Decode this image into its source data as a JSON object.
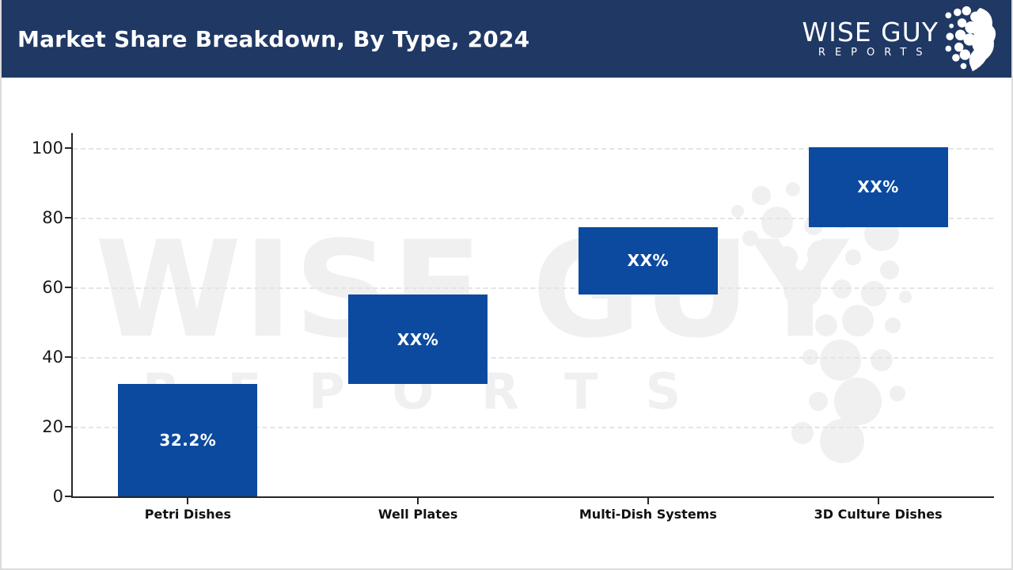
{
  "header": {
    "title": "Market Share Breakdown, By Type, 2024",
    "logo": {
      "line1": "WISE GUY",
      "line2": "REPORTS"
    }
  },
  "watermark": {
    "line1": "WISE GUY",
    "line2": "REPORTS"
  },
  "colors": {
    "header_bg": "#1F3864",
    "bar_fill": "#0B4A9F",
    "bar_label_text": "#ffffff",
    "grid": "#e4e4e4",
    "axis": "#262626",
    "watermark": "#f0f0f1"
  },
  "chart_data": {
    "type": "bar",
    "subtype": "waterfall",
    "title": "Market Share Breakdown, By Type, 2024",
    "xlabel": "",
    "ylabel": "",
    "ylim": [
      0,
      105
    ],
    "yticks": [
      0,
      20,
      40,
      60,
      80,
      100
    ],
    "grid": "horizontal-dashed",
    "legend": "none",
    "categories": [
      "Petri Dishes",
      "Well Plates",
      "Multi-Dish Systems",
      "3D Culture Dishes"
    ],
    "segments": [
      {
        "category": "Petri Dishes",
        "start": 0,
        "end": 32.2,
        "label": "32.2%"
      },
      {
        "category": "Well Plates",
        "start": 32.2,
        "end": 58.0,
        "label": "XX%"
      },
      {
        "category": "Multi-Dish Systems",
        "start": 58.0,
        "end": 77.3,
        "label": "XX%"
      },
      {
        "category": "3D Culture Dishes",
        "start": 77.3,
        "end": 100.2,
        "label": "XX%"
      }
    ]
  }
}
